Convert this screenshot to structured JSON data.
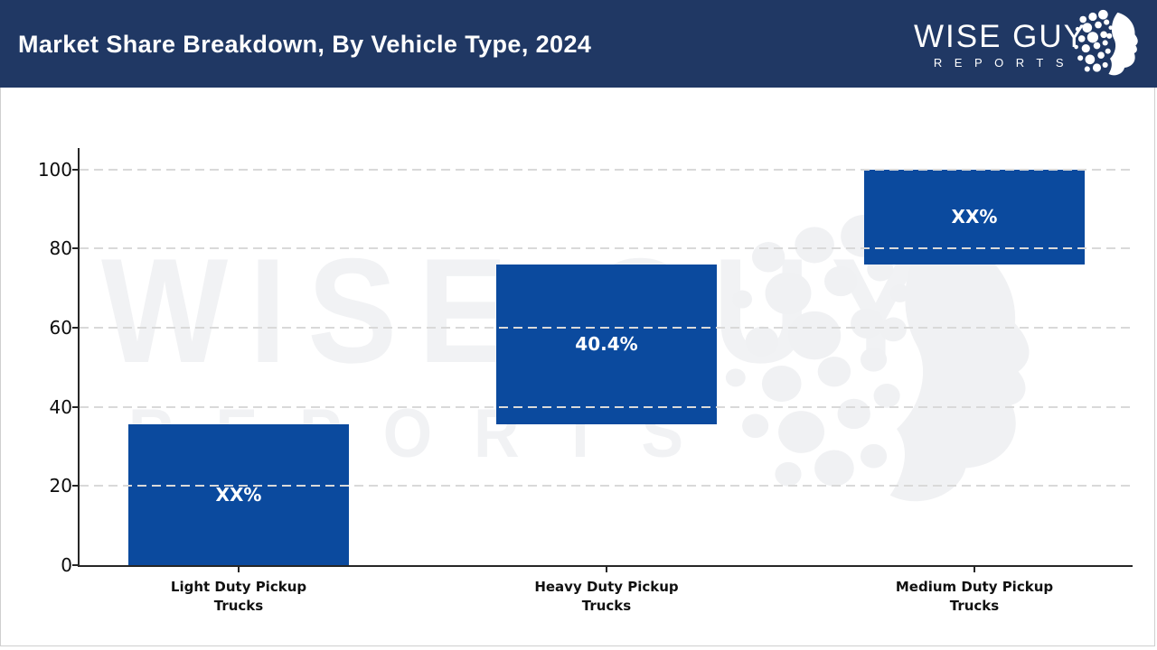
{
  "header": {
    "title": "Market Share Breakdown, By Vehicle Type, 2024",
    "bg_color": "#203864",
    "logo": {
      "line1": "WISE GUY",
      "line2": "REPORTS"
    }
  },
  "watermark": {
    "line1": "WISE GUY",
    "line2": "REPORTS"
  },
  "chart_data": {
    "type": "bar",
    "subtype": "floating-waterfall",
    "title": "Market Share Breakdown, By Vehicle Type, 2024",
    "xlabel": "",
    "ylabel": "",
    "ylim": [
      0,
      100
    ],
    "yticks": [
      0,
      20,
      40,
      60,
      80,
      100
    ],
    "grid": "dashed horizontal",
    "legend": "none",
    "bar_color": "#0b4a9e",
    "categories": [
      [
        "Light Duty Pickup",
        "Trucks"
      ],
      [
        "Heavy Duty Pickup",
        "Trucks"
      ],
      [
        "Medium Duty Pickup",
        "Trucks"
      ]
    ],
    "segments": [
      {
        "category": "Light Duty Pickup Trucks",
        "start": 0,
        "end": 35.6,
        "value_label": "XX%"
      },
      {
        "category": "Heavy Duty Pickup Trucks",
        "start": 35.6,
        "end": 76,
        "value_label": "40.4%"
      },
      {
        "category": "Medium Duty Pickup Trucks",
        "start": 76,
        "end": 100,
        "value_label": "XX%"
      }
    ]
  },
  "colors": {
    "header_bg": "#203864",
    "bar_blue": "#0b4a9e",
    "gridline": "#d9d9d9",
    "watermark": "#f1f2f4",
    "axis": "#262626"
  }
}
